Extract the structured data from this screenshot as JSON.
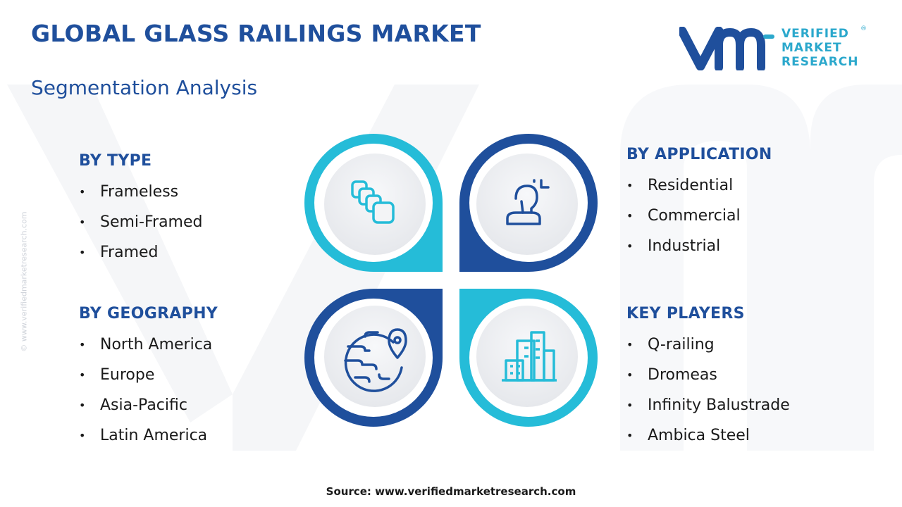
{
  "header": {
    "title": "GLOBAL GLASS RAILINGS MARKET",
    "subtitle": "Segmentation Analysis"
  },
  "logo": {
    "line1": "VERIFIED",
    "line2": "MARKET",
    "line3": "RESEARCH",
    "registered": "®"
  },
  "side_watermark": "© www.verifiedmarketresearch.com",
  "segments": {
    "type": {
      "heading": "BY TYPE",
      "items": [
        "Frameless",
        "Semi-Framed",
        "Framed"
      ]
    },
    "application": {
      "heading": "BY APPLICATION",
      "items": [
        "Residential",
        "Commercial",
        "Industrial"
      ]
    },
    "geography": {
      "heading": "BY GEOGRAPHY",
      "items": [
        "North America",
        "Europe",
        "Asia-Pacific",
        "Latin America"
      ]
    },
    "key_players": {
      "heading": "KEY PLAYERS",
      "items": [
        "Q-railing",
        "Dromeas",
        "Infinity Balustrade",
        "Ambica Steel"
      ]
    }
  },
  "bullet": "•",
  "source": "Source: www.verifiedmarketresearch.com",
  "icons": {
    "type": "stacked-panels-icon",
    "application": "person-icon",
    "geography": "globe-location-icon",
    "key_players": "buildings-icon"
  },
  "colors": {
    "dark_blue": "#1f4f9c",
    "light_blue": "#25bcd8",
    "text": "#1a1a1a"
  }
}
